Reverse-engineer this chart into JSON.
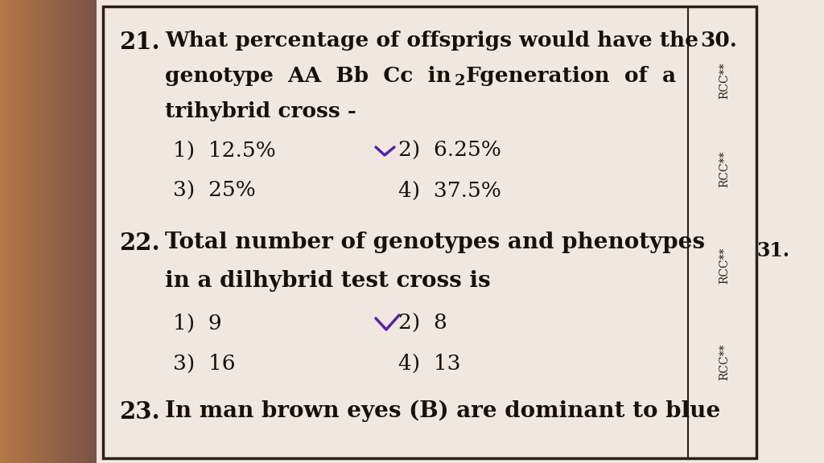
{
  "bg_color": "#c8a882",
  "paper_color": "#f0e8e0",
  "border_color": "#2a2018",
  "text_color": "#1a1008",
  "purple_color": "#5522aa",
  "side_text_color": "#2a2018",
  "q21_num": "21.",
  "q21_line1": "What percentage of offsprigs would have the",
  "q21_line2": "genotype  AA  Bb  Cc  in  F",
  "q21_sub2": "2",
  "q21_line2b": "  generation  of  a",
  "q21_line3": "trihybrid cross -",
  "q21_opt1": "1)  12.5%",
  "q21_opt2": "2)  6.25%",
  "q21_opt3": "3)  25%",
  "q21_opt4": "4)  37.5%",
  "q22_num": "22.",
  "q22_line1": "Total number of genotypes and phenotypes",
  "q22_line2": "in a dilhybrid test cross is",
  "q22_opt1": "1)  9",
  "q22_opt2": "2)  8",
  "q22_opt3": "3)  16",
  "q22_opt4": "4)  13",
  "q23_num": "23.",
  "q23_line1": "In man brown eyes (B) are dominant to blue",
  "q30_label": "30.",
  "q31_label": "31.",
  "font_size_main": 19,
  "font_size_side": 10
}
